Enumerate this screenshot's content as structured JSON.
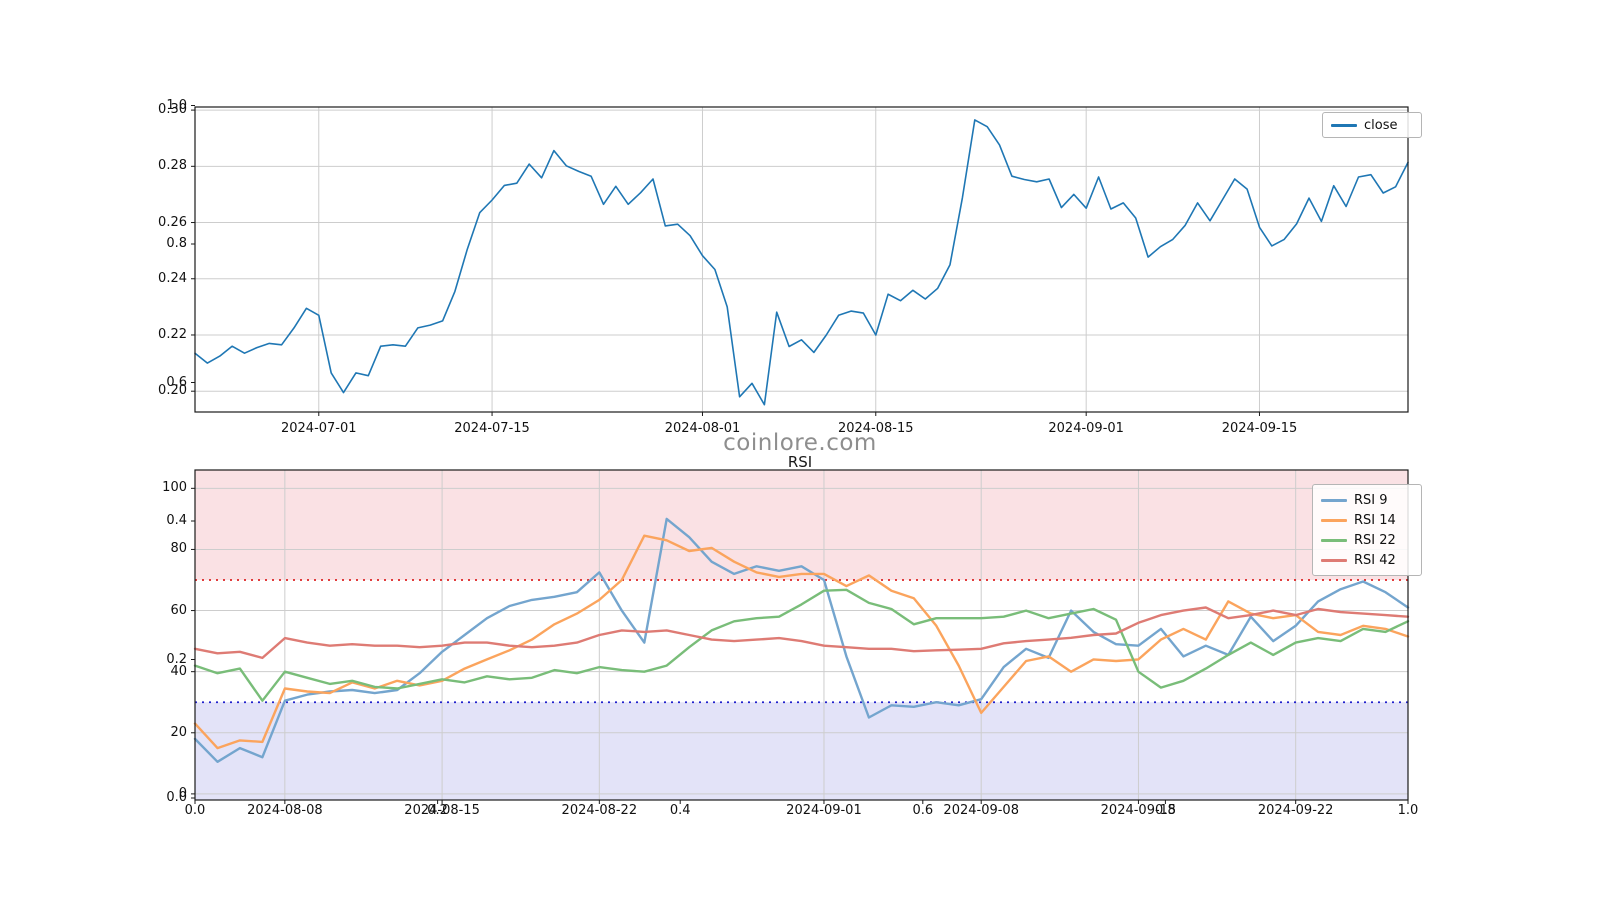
{
  "watermark": "coinlore.com",
  "figure_axis": {
    "y_tick_labels": [
      "1.0",
      "0.8",
      "0.6",
      "0.4",
      "0.2",
      "0.0"
    ],
    "x_tick_labels": [
      "0.0",
      "0.2",
      "0.4",
      "0.6",
      "0.8",
      "1.0"
    ]
  },
  "colors": {
    "close": "#1f77b4",
    "rsi9": "#74a5ce",
    "rsi14": "#fba45d",
    "rsi22": "#79bd79",
    "rsi42": "#de7b74",
    "overbought_line": "#dd2222",
    "oversold_line": "#2222cc",
    "overbought_band": "#fae1e4",
    "oversold_band": "#e3e3f8",
    "grid": "#cdcdcd",
    "spine": "#1a1a1a"
  },
  "chart_data": [
    {
      "type": "line",
      "title": "",
      "legend_position": "upper right",
      "x_start": "2024-06-21",
      "x_step_days": 1,
      "ylim": [
        0.1926,
        0.3011
      ],
      "y_ticks": [
        {
          "label": "0.30",
          "v": 0.3
        },
        {
          "label": "0.28",
          "v": 0.28
        },
        {
          "label": "0.26",
          "v": 0.26
        },
        {
          "label": "0.24",
          "v": 0.24
        },
        {
          "label": "0.22",
          "v": 0.22
        },
        {
          "label": "0.20",
          "v": 0.2
        }
      ],
      "x_ticks": [
        {
          "label": "2024-07-01",
          "day": 10
        },
        {
          "label": "2024-07-15",
          "day": 24
        },
        {
          "label": "2024-08-01",
          "day": 41
        },
        {
          "label": "2024-08-15",
          "day": 55
        },
        {
          "label": "2024-09-01",
          "day": 72
        },
        {
          "label": "2024-09-15",
          "day": 86
        }
      ],
      "series": [
        {
          "name": "close",
          "color_key": "close",
          "width": 1.6,
          "values": [
            0.2135,
            0.21,
            0.2125,
            0.216,
            0.2135,
            0.2155,
            0.217,
            0.2165,
            0.2225,
            0.2295,
            0.227,
            0.2065,
            0.1995,
            0.2065,
            0.2055,
            0.216,
            0.2165,
            0.216,
            0.2225,
            0.2235,
            0.225,
            0.2355,
            0.2505,
            0.2635,
            0.268,
            0.2732,
            0.274,
            0.2808,
            0.2759,
            0.2856,
            0.2802,
            0.2782,
            0.2765,
            0.2665,
            0.2729,
            0.2665,
            0.2706,
            0.2755,
            0.2588,
            0.2594,
            0.2553,
            0.2482,
            0.2433,
            0.23,
            0.198,
            0.2028,
            0.1952,
            0.2281,
            0.2159,
            0.2183,
            0.2138,
            0.22,
            0.227,
            0.2285,
            0.2278,
            0.22,
            0.2345,
            0.2322,
            0.2359,
            0.2328,
            0.2366,
            0.245,
            0.2688,
            0.2965,
            0.2941,
            0.2876,
            0.2765,
            0.2753,
            0.2745,
            0.2755,
            0.2653,
            0.27,
            0.2651,
            0.2762,
            0.2648,
            0.267,
            0.2616,
            0.2477,
            0.2514,
            0.254,
            0.259,
            0.267,
            0.2606,
            0.268,
            0.2755,
            0.2719,
            0.2583,
            0.2517,
            0.254,
            0.2595,
            0.2687,
            0.2604,
            0.2731,
            0.2657,
            0.2762,
            0.277,
            0.2705,
            0.2727,
            0.2814
          ]
        }
      ]
    },
    {
      "type": "line",
      "title": "RSI",
      "legend_position": "upper right",
      "x_start": "2024-08-04",
      "x_step_days": 1,
      "ylim": [
        -2,
        106
      ],
      "y_ticks": [
        {
          "label": "100",
          "v": 100
        },
        {
          "label": "80",
          "v": 80
        },
        {
          "label": "60",
          "v": 60
        },
        {
          "label": "40",
          "v": 40
        },
        {
          "label": "20",
          "v": 20
        },
        {
          "label": "0",
          "v": 0
        }
      ],
      "x_ticks": [
        {
          "label": "2024-08-08",
          "day": 4
        },
        {
          "label": "2024-08-15",
          "day": 11
        },
        {
          "label": "2024-08-22",
          "day": 18
        },
        {
          "label": "2024-09-01",
          "day": 28
        },
        {
          "label": "2024-09-08",
          "day": 35
        },
        {
          "label": "2024-09-15",
          "day": 42
        },
        {
          "label": "2024-09-22",
          "day": 49
        }
      ],
      "hlines": [
        {
          "name": "overbought-threshold",
          "v": 70,
          "color_key": "overbought_line"
        },
        {
          "name": "oversold-threshold",
          "v": 30,
          "color_key": "oversold_line"
        }
      ],
      "bands": [
        {
          "name": "overbought-band",
          "from": 70,
          "to": 106,
          "color_key": "overbought_band"
        },
        {
          "name": "oversold-band",
          "from": -2,
          "to": 30,
          "color_key": "oversold_band"
        }
      ],
      "series": [
        {
          "name": "RSI 9",
          "color_key": "rsi9",
          "width": 2.4,
          "values": [
            18,
            10.5,
            15,
            12,
            30.5,
            32.5,
            33.5,
            34,
            33,
            34,
            39.5,
            46.5,
            52,
            57.5,
            61.5,
            63.5,
            64.5,
            66,
            72.5,
            60,
            49.5,
            90,
            84,
            76,
            72,
            74.5,
            73,
            74.5,
            70,
            45,
            25,
            29,
            28.5,
            30,
            29,
            31,
            41.5,
            47.5,
            44.5,
            60,
            53,
            49,
            48.5,
            54,
            45,
            48.5,
            45.5,
            58,
            50,
            55,
            63,
            67,
            69.5,
            66,
            61
          ]
        },
        {
          "name": "RSI 14",
          "color_key": "rsi14",
          "width": 2.4,
          "values": [
            23,
            15,
            17.5,
            17,
            34.5,
            33.5,
            33,
            36.5,
            34.5,
            37,
            35.5,
            37,
            41,
            44,
            47,
            50.5,
            55.5,
            59,
            63.5,
            70,
            84.5,
            83,
            79.5,
            80.5,
            76,
            72.5,
            71,
            72,
            72,
            68,
            71.5,
            66.5,
            64,
            55,
            42,
            26.5,
            35,
            43.5,
            45,
            40,
            44,
            43.5,
            44,
            50.5,
            54,
            50.5,
            63,
            59,
            57.5,
            58.5,
            53,
            52,
            55,
            54,
            51.5
          ]
        },
        {
          "name": "RSI 22",
          "color_key": "rsi22",
          "width": 2.4,
          "values": [
            42,
            39.5,
            41,
            30.5,
            40,
            38,
            36,
            37,
            35,
            34.5,
            36,
            37.5,
            36.5,
            38.5,
            37.5,
            38,
            40.5,
            39.5,
            41.5,
            40.5,
            40,
            42,
            48,
            53.5,
            56.5,
            57.5,
            58,
            62,
            66.5,
            66.8,
            62.5,
            60.5,
            55.5,
            57.5,
            57.5,
            57.5,
            58,
            60,
            57.5,
            59,
            60.5,
            57,
            40,
            34.8,
            37,
            41,
            45.5,
            49.5,
            45.5,
            49.5,
            51,
            50,
            54,
            53,
            56.5
          ]
        },
        {
          "name": "RSI 42",
          "color_key": "rsi42",
          "width": 2.4,
          "values": [
            47.5,
            46,
            46.5,
            44.5,
            51,
            49.5,
            48.5,
            49,
            48.5,
            48.5,
            48,
            48.5,
            49.5,
            49.5,
            48.5,
            48,
            48.5,
            49.5,
            52,
            53.5,
            53,
            53.5,
            52,
            50.5,
            50,
            50.5,
            51,
            50,
            48.5,
            48,
            47.5,
            47.5,
            46.7,
            47,
            47.2,
            47.5,
            49.3,
            50,
            50.5,
            51.1,
            52,
            52.5,
            56,
            58.5,
            60,
            61,
            57.5,
            58.5,
            60,
            58.5,
            60.5,
            59.5,
            59,
            58.5,
            58
          ]
        }
      ]
    }
  ]
}
